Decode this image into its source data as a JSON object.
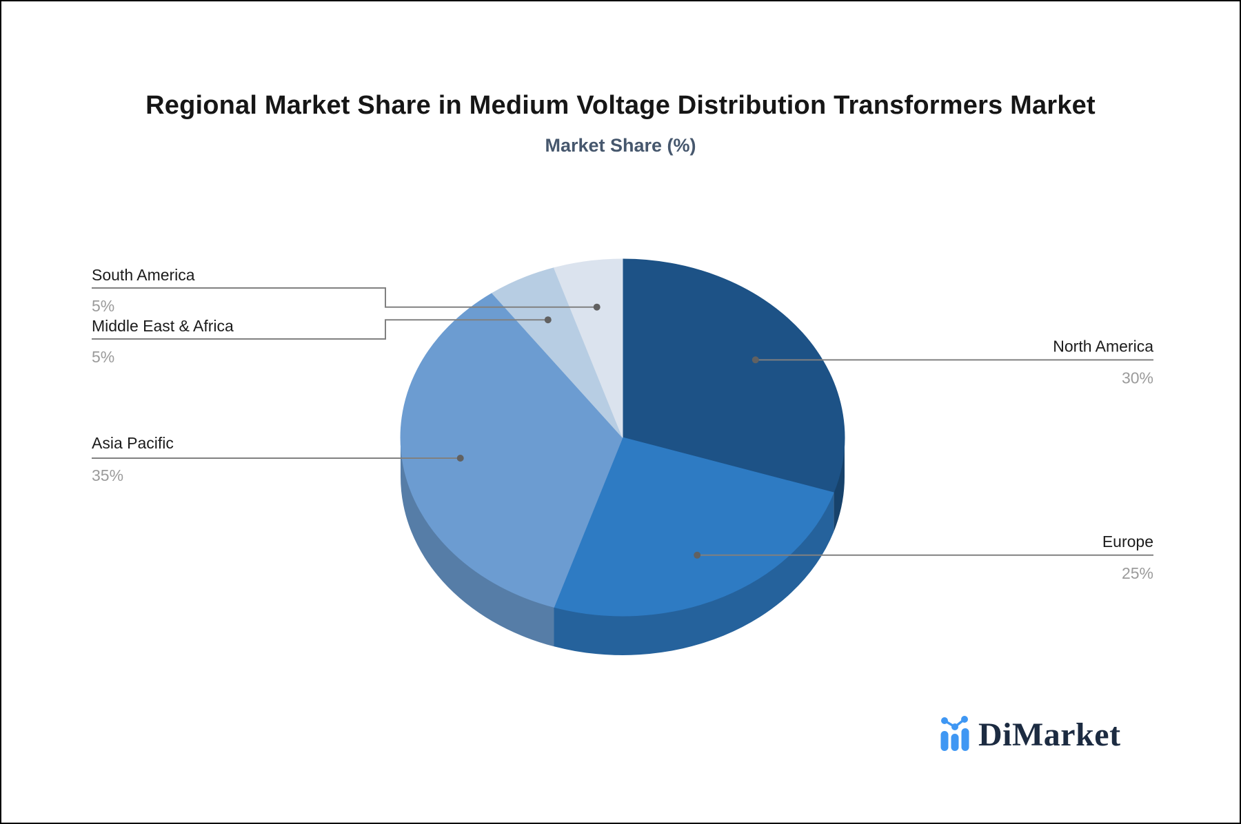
{
  "chart_data": {
    "type": "pie",
    "title": "Regional Market Share in Medium Voltage Distribution Transformers Market",
    "subtitle": "Market Share (%)",
    "total": 100,
    "start_angle_deg": 0,
    "direction": "clockwise",
    "style": "3d",
    "legend_position": "leader-line-labels",
    "slices": [
      {
        "label": "North America",
        "value": 30,
        "percent_label": "30%",
        "color": "#1d5286"
      },
      {
        "label": "Europe",
        "value": 25,
        "percent_label": "25%",
        "color": "#2e7bc3"
      },
      {
        "label": "Asia Pacific",
        "value": 35,
        "percent_label": "35%",
        "color": "#6c9cd1"
      },
      {
        "label": "Middle East & Africa",
        "value": 5,
        "percent_label": "5%",
        "color": "#b7cde3"
      },
      {
        "label": "South America",
        "value": 5,
        "percent_label": "5%",
        "color": "#dbe3ee"
      }
    ]
  },
  "text_colors": {
    "title": "#161616",
    "subtitle": "#46576d",
    "label": "#1b1b1b",
    "percent": "#9b9b9b",
    "leader_line": "#808080",
    "leader_dot": "#616161"
  },
  "branding": {
    "logo_text": "DiMarket",
    "logo_icon_color": "#3f97f3"
  }
}
